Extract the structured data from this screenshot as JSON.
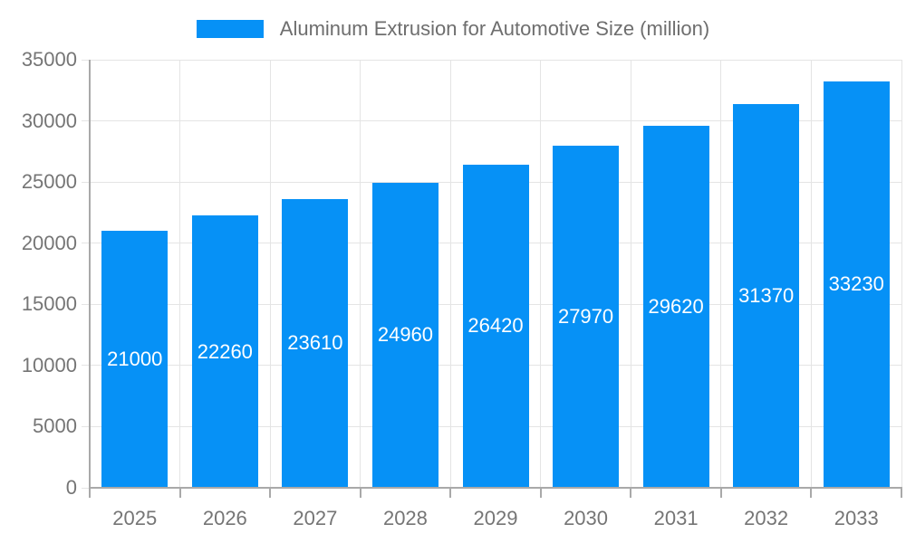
{
  "legend": {
    "label": "Aluminum Extrusion for Automotive Size (million)"
  },
  "chart_data": {
    "type": "bar",
    "title": "Aluminum Extrusion for Automotive Size (million)",
    "categories": [
      "2025",
      "2026",
      "2027",
      "2028",
      "2029",
      "2030",
      "2031",
      "2032",
      "2033"
    ],
    "series": [
      {
        "name": "Aluminum Extrusion for Automotive Size (million)",
        "values": [
          21000,
          22260,
          23610,
          24960,
          26420,
          27970,
          29620,
          31370,
          33230
        ]
      }
    ],
    "bar_value_labels": [
      "21000",
      "22260",
      "23610",
      "24960",
      "26420",
      "27970",
      "29620",
      "31370",
      "33230"
    ],
    "xlabel": "",
    "ylabel": "",
    "ylim": [
      0,
      35000
    ],
    "yticks": [
      0,
      5000,
      10000,
      15000,
      20000,
      25000,
      30000,
      35000
    ],
    "ytick_labels": [
      "0",
      "5000",
      "10000",
      "15000",
      "20000",
      "25000",
      "30000",
      "35000"
    ],
    "grid": true,
    "legend_position": "top",
    "colors": {
      "bar": "#0691f6",
      "bar_label": "#ffffff",
      "axis_text": "#757575",
      "legend_text": "#6e6e6e",
      "grid": "#e4e4e4",
      "axis_line": "#a9a9a9",
      "background": "#ffffff"
    }
  }
}
